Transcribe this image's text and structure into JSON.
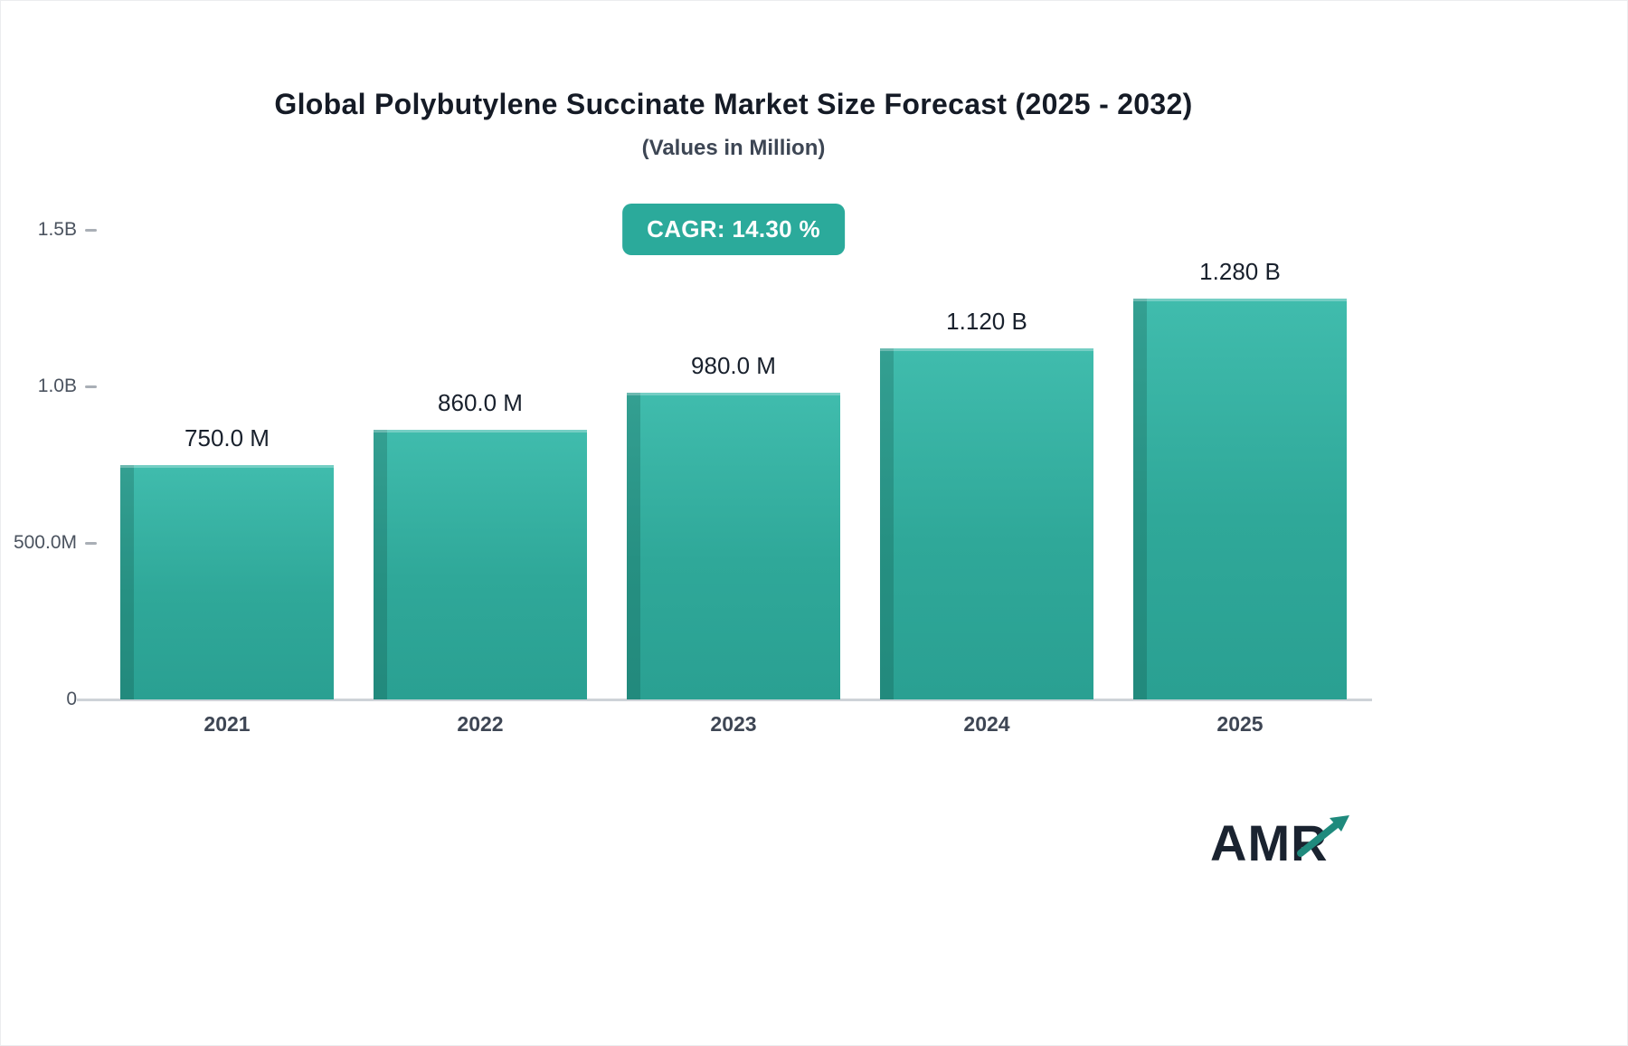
{
  "header": {
    "title": "Global Polybutylene Succinate Market Size Forecast (2025 - 2032)",
    "subtitle": "(Values in Million)",
    "cagr_badge": "CAGR: 14.30 %"
  },
  "chart_data": {
    "type": "bar",
    "title": "Global Polybutylene Succinate Market Size Forecast (2025 - 2032)",
    "subtitle": "(Values in Million)",
    "categories": [
      "2021",
      "2022",
      "2023",
      "2024",
      "2025"
    ],
    "values": [
      750,
      860,
      980,
      1120,
      1280
    ],
    "value_labels": [
      "750.0 M",
      "860.0 M",
      "980.0 M",
      "1.120 B",
      "1.280 B"
    ],
    "unit": "Million",
    "cagr": "14.30 %",
    "xlabel": "",
    "ylabel": "",
    "ylim": [
      0,
      1500
    ],
    "grid": false,
    "legend": "none",
    "y_ticks": [
      {
        "label": "1.5B",
        "value": 1500
      },
      {
        "label": "1.0B",
        "value": 1000
      },
      {
        "label": "500.0M",
        "value": 500
      },
      {
        "label": "0",
        "value": 0
      }
    ],
    "bar_color_top": "#40bcad",
    "bar_color_bottom": "#2aa092",
    "bar_side_color": "#1f8a7d"
  },
  "branding": {
    "logo_text": "AMR"
  },
  "colors": {
    "accent": "#2baa9b",
    "title_text": "#151b26",
    "axis_text": "#4b535f",
    "baseline": "#ced3d8"
  }
}
